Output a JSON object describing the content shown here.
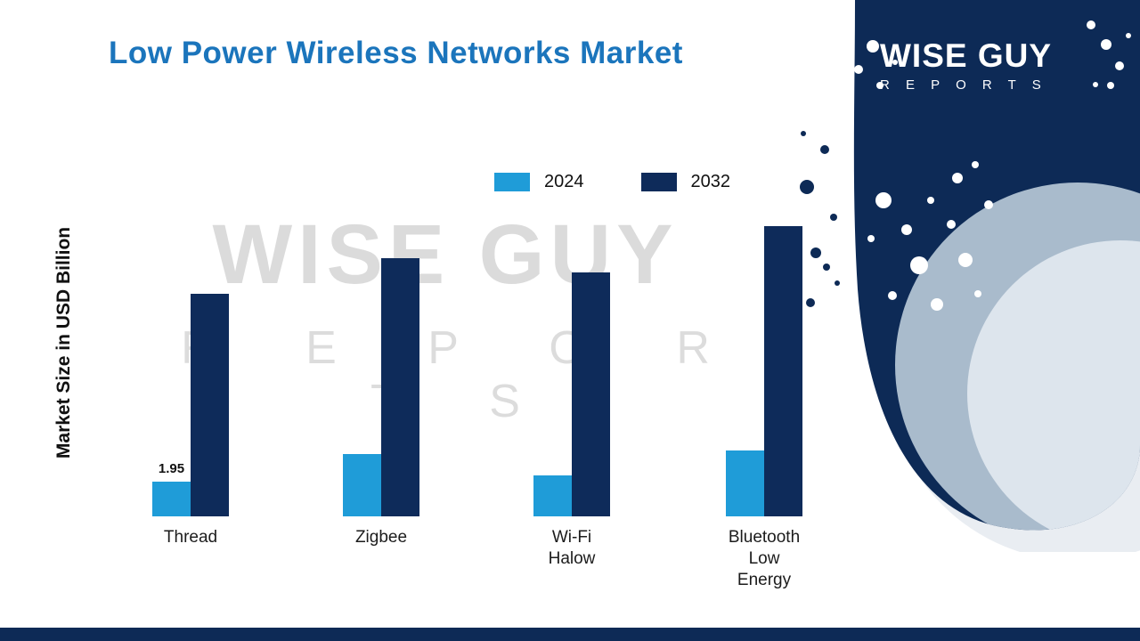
{
  "title": "Low Power Wireless Networks Market",
  "logo": {
    "line1": "WISE GUY",
    "line2": "R E P O R T S"
  },
  "watermark": {
    "line1": "WISE GUY",
    "line2": "R E P O R T S"
  },
  "colors": {
    "title_blue": "#1b75bc",
    "bar_2024": "#1f9cd8",
    "bar_2032": "#0e2b5a",
    "corner_navy": "#0d2a56",
    "accent_bar": "#0d2a56"
  },
  "chart_data": {
    "type": "bar",
    "title": "Low Power Wireless Networks Market",
    "ylabel": "Market Size in USD Billion",
    "xlabel": "",
    "ylim": [
      0,
      17
    ],
    "grid": false,
    "legend_position": "top-center",
    "categories": [
      "Thread",
      "Zigbee",
      "Wi-Fi Halow",
      "Bluetooth Low Energy"
    ],
    "label_lines": [
      [
        "Thread"
      ],
      [
        "Zigbee"
      ],
      [
        "Wi-Fi",
        "Halow"
      ],
      [
        "Bluetooth",
        "Low",
        "Energy"
      ]
    ],
    "series": [
      {
        "name": "2024",
        "color": "#1f9cd8",
        "values": [
          1.95,
          3.5,
          2.3,
          3.7
        ]
      },
      {
        "name": "2032",
        "color": "#0e2b5a",
        "values": [
          12.5,
          14.5,
          13.7,
          16.3
        ]
      }
    ],
    "annotations": [
      {
        "category_index": 0,
        "series_index": 0,
        "text": "1.95"
      }
    ]
  }
}
